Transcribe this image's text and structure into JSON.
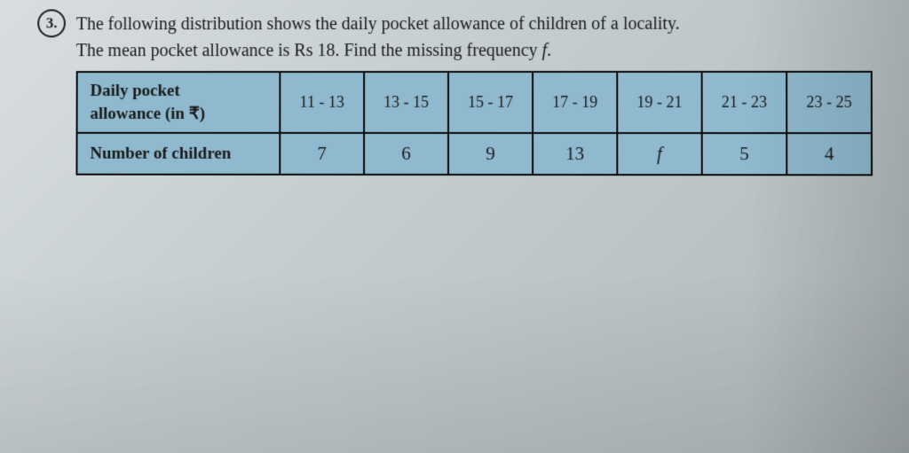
{
  "cutoff": "",
  "question": {
    "number": "3.",
    "line1": "The following distribution shows the daily pocket allowance of children of a locality.",
    "line2_before_f": "The mean pocket allowance is Rs 18. Find the missing frequency ",
    "line2_f": "f",
    "line2_after_f": "."
  },
  "table": {
    "row1_header_line1": "Daily pocket",
    "row1_header_line2_before": "allowance (in ",
    "row1_header_rupee": "₹",
    "row1_header_line2_after": ")",
    "row2_header": "Number of children",
    "intervals": [
      "11 - 13",
      "13 - 15",
      "15 - 17",
      "17 - 19",
      "19 - 21",
      "21 - 23",
      "23 - 25"
    ],
    "frequencies": [
      "7",
      "6",
      "9",
      "13",
      "f",
      "5",
      "4"
    ]
  },
  "styling": {
    "table_bg_color": "#8fb9ce",
    "border_color": "#0a0a0a",
    "text_color": "#1a1a1a",
    "page_bg_gradient_start": "#d8dde0",
    "page_bg_gradient_end": "#b0b8bc",
    "header_fontsize": 19,
    "data_fontsize": 18,
    "question_fontsize": 20,
    "border_width": 2.5
  }
}
